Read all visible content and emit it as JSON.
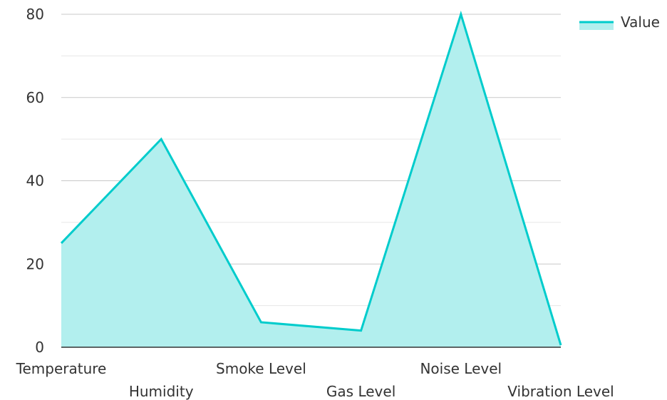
{
  "chart_data": {
    "type": "area",
    "categories": [
      "Temperature",
      "Humidity",
      "Smoke Level",
      "Gas Level",
      "Noise Level",
      "Vibration Level"
    ],
    "series": [
      {
        "name": "Value",
        "values": [
          25,
          50,
          6,
          4,
          80,
          0.5
        ],
        "color": "#00cccc",
        "fill": "#b2efee"
      }
    ],
    "ylim": [
      0,
      80
    ],
    "yticks": [
      0,
      20,
      40,
      60,
      80
    ],
    "y_minor_gridlines": true,
    "grid": true,
    "legend": "top-right",
    "gridline_color": "#c8c8c8",
    "minor_gridline_color": "#e6e6e6",
    "axis_color": "#333333"
  }
}
